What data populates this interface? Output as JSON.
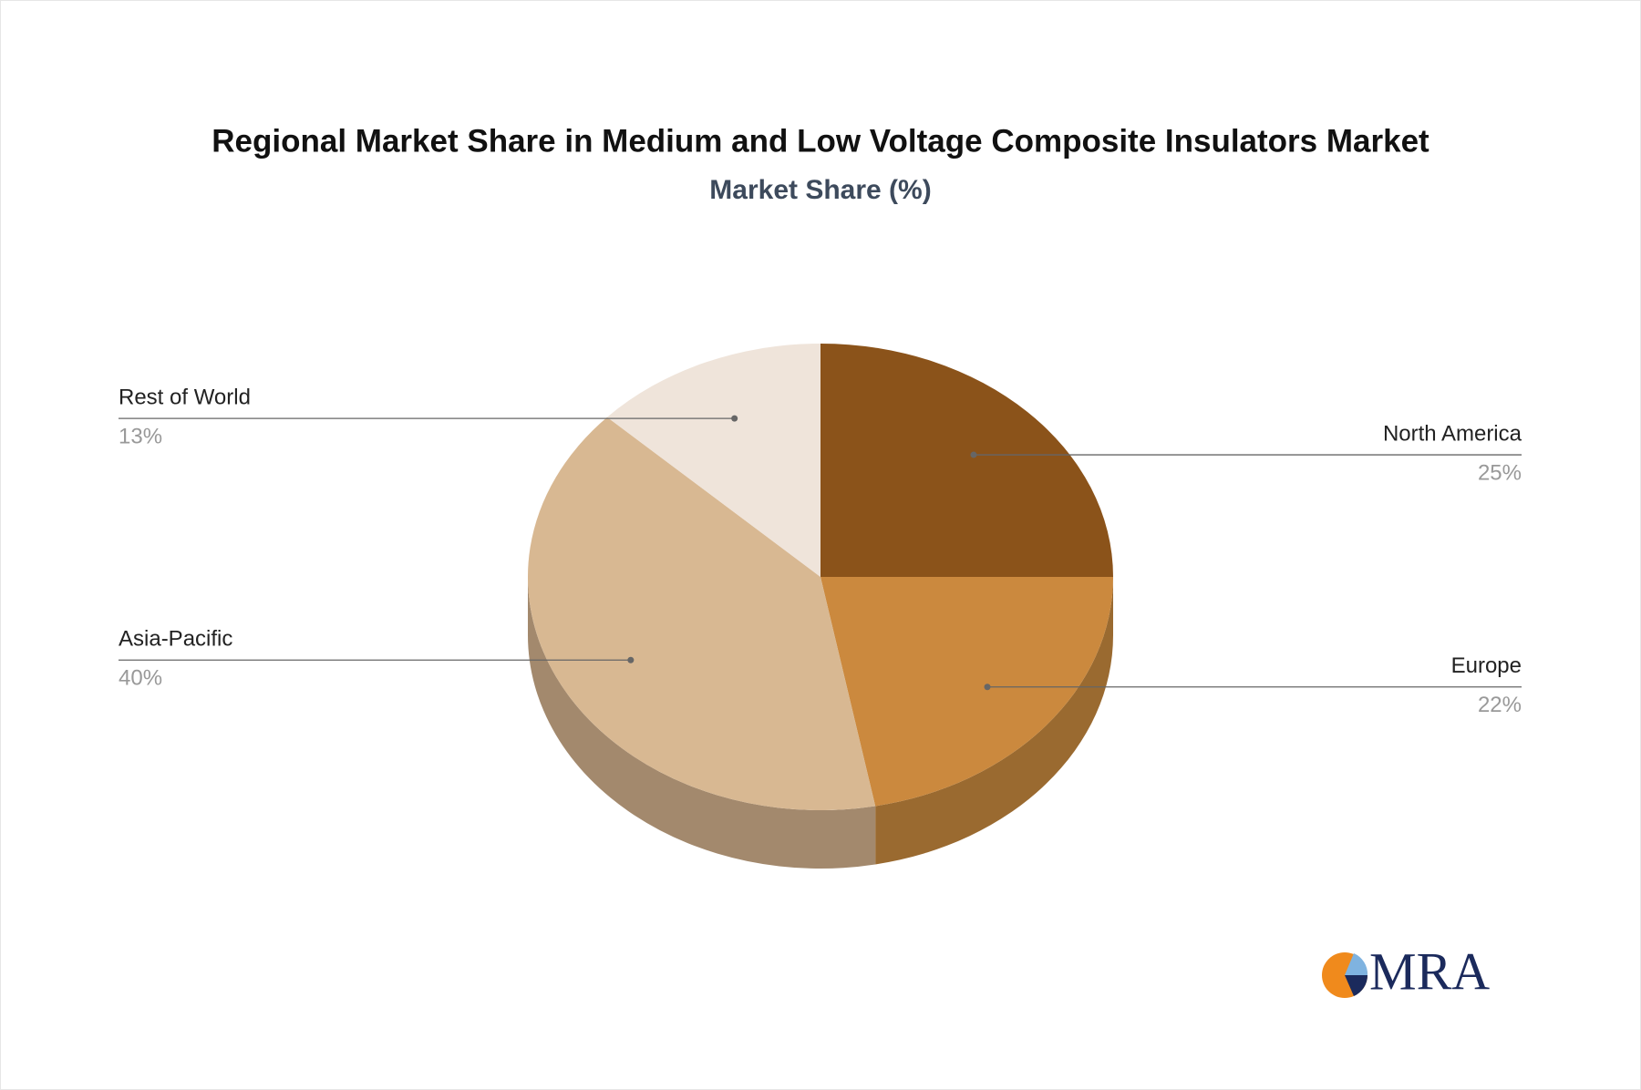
{
  "chart_data": {
    "type": "pie",
    "title": "Regional Market Share in Medium and Low Voltage Composite Insulators Market",
    "subtitle": "Market Share (%)",
    "categories": [
      "North America",
      "Europe",
      "Asia-Pacific",
      "Rest of World"
    ],
    "values": [
      25,
      22,
      40,
      13
    ],
    "value_labels": [
      "25%",
      "22%",
      "40%",
      "13%"
    ],
    "colors": [
      "#8b531a",
      "#cb893e",
      "#d8b892",
      "#efe4da"
    ],
    "side_colors": [
      "#6e4214",
      "#9a6a30",
      "#a3896d",
      "#bfb5ac"
    ],
    "logo": "MRA"
  }
}
